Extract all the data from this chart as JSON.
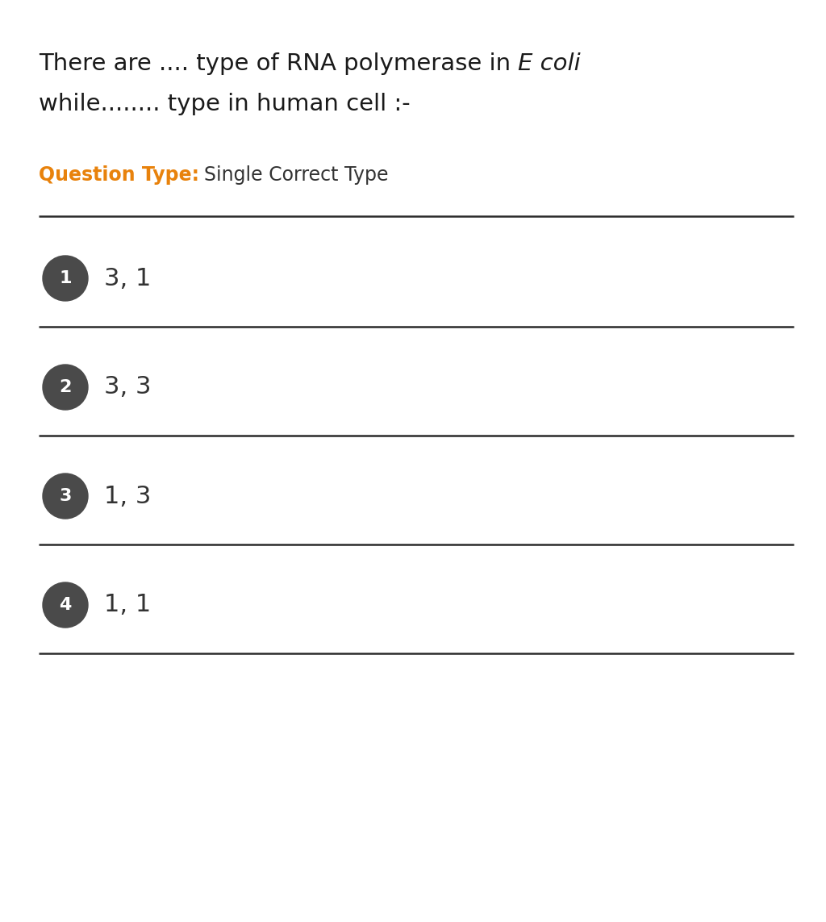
{
  "background_color": "#ffffff",
  "title_line1_normal": "There are .... type of RNA polymerase in ",
  "title_line1_italic": "E coli",
  "title_line2": "while........ type in human cell :-",
  "question_type_label": "Question Type:",
  "question_type_value": "Single Correct Type",
  "question_type_color": "#e8820c",
  "options": [
    {
      "number": "1",
      "text": "3, 1"
    },
    {
      "number": "2",
      "text": "3, 3"
    },
    {
      "number": "3",
      "text": "1, 3"
    },
    {
      "number": "4",
      "text": "1, 1"
    }
  ],
  "circle_color": "#4a4a4a",
  "circle_text_color": "#ffffff",
  "option_text_color": "#333333",
  "divider_color": "#2a2a2a",
  "title_color": "#1a1a1a",
  "fig_width": 10.24,
  "fig_height": 11.43,
  "dpi": 100
}
